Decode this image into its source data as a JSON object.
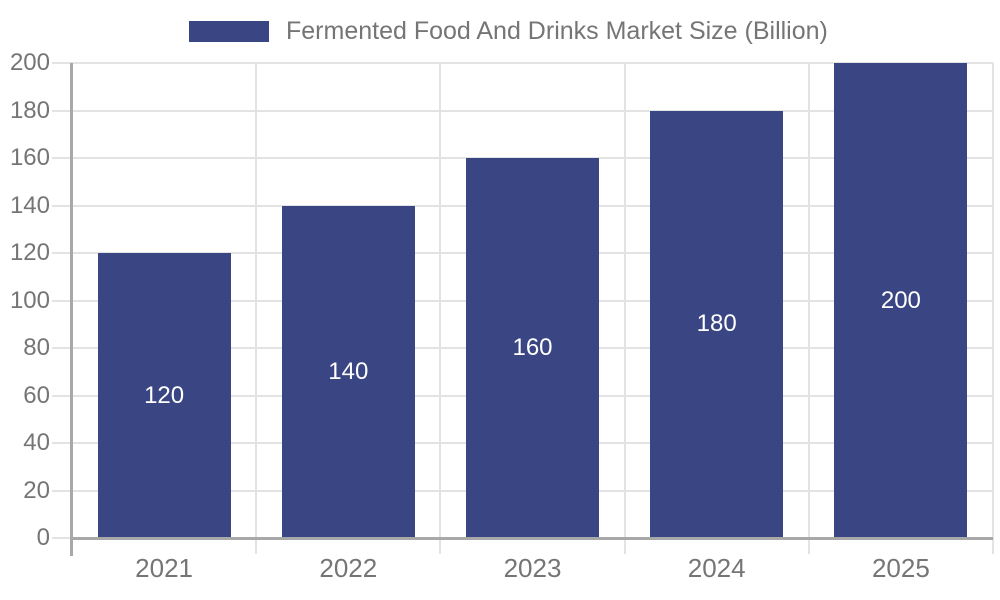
{
  "chart_data": {
    "type": "bar",
    "title": "Fermented Food And Drinks Market Size (Billion)",
    "categories": [
      "2021",
      "2022",
      "2023",
      "2024",
      "2025"
    ],
    "values": [
      120,
      140,
      160,
      180,
      200
    ],
    "series": [
      {
        "name": "Fermented Food And Drinks Market Size (Billion)",
        "values": [
          120,
          140,
          160,
          180,
          200
        ]
      }
    ],
    "bar_value_labels": [
      "120",
      "140",
      "160",
      "180",
      "200"
    ],
    "xlabel": "",
    "ylabel": "",
    "ylim": [
      0,
      200
    ],
    "ytick_step": 20,
    "ytick_labels": [
      "0",
      "20",
      "40",
      "60",
      "80",
      "100",
      "120",
      "140",
      "160",
      "180",
      "200"
    ],
    "grid": true,
    "legend_position": "top",
    "colors": {
      "bar": "#3A4583",
      "value_label": "#ffffff",
      "axis_text": "#757575",
      "legend_text": "#757575",
      "gridline": "#E3E3E3",
      "axis_line": "#A8A8A8",
      "background": "#ffffff"
    }
  }
}
